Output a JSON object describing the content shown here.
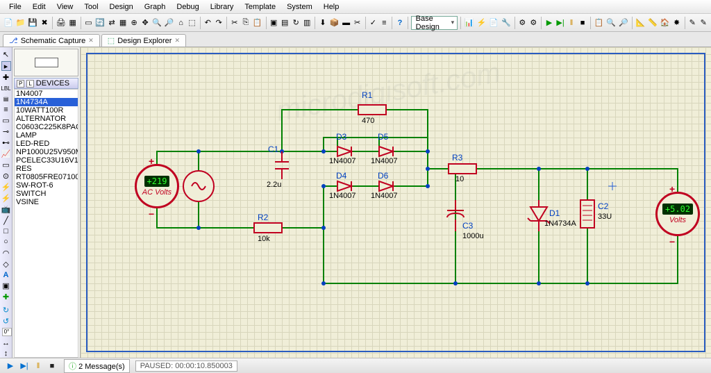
{
  "menu": [
    "File",
    "Edit",
    "View",
    "Tool",
    "Design",
    "Graph",
    "Debug",
    "Library",
    "Template",
    "System",
    "Help"
  ],
  "combo": {
    "label": "Base Design"
  },
  "tabs": [
    {
      "icon": "#2860d8",
      "label": "Schematic Capture"
    },
    {
      "icon": "#2aa060",
      "label": "Design Explorer"
    }
  ],
  "devices_header": "DEVICES",
  "devices": [
    "1N4007",
    "1N4734A",
    "10WATT100R",
    "ALTERNATOR",
    "C0603C225K8PAC",
    "LAMP",
    "LED-RED",
    "NP1000U25V950M",
    "PCELEC33U16V11",
    "RES",
    "RT0805FRE07100",
    "SW-ROT-6",
    "SWITCH",
    "VSINE"
  ],
  "devices_selected_index": 1,
  "components": {
    "R1": {
      "ref": "R1",
      "val": "470"
    },
    "R2": {
      "ref": "R2",
      "val": "10k"
    },
    "R3": {
      "ref": "R3",
      "val": "10"
    },
    "C1": {
      "ref": "C1",
      "val": "2.2u"
    },
    "C2": {
      "ref": "C2",
      "val": "33U"
    },
    "C3": {
      "ref": "C3",
      "val": "1000u"
    },
    "D1": {
      "ref": "D1",
      "val": "1N4734A"
    },
    "D3": {
      "ref": "D3",
      "val": "1N4007"
    },
    "D4": {
      "ref": "D4",
      "val": "1N4007"
    },
    "D5": {
      "ref": "D5",
      "val": "1N4007"
    },
    "D6": {
      "ref": "D6",
      "val": "1N4007"
    }
  },
  "meters": {
    "ac": {
      "reading": "+219",
      "label": "AC Volts"
    },
    "dc": {
      "reading": "+5.02",
      "label": "Volts"
    }
  },
  "status": {
    "messages": "2 Message(s)",
    "paused": "PAUSED: 00:00:10.850003"
  },
  "colors": {
    "wire_pos": "#008000",
    "wire_neg": "#008000",
    "comp": "#c00020",
    "comp_fill": "#f0eed8",
    "ref": "#0040c0",
    "node": "#0040c0"
  }
}
